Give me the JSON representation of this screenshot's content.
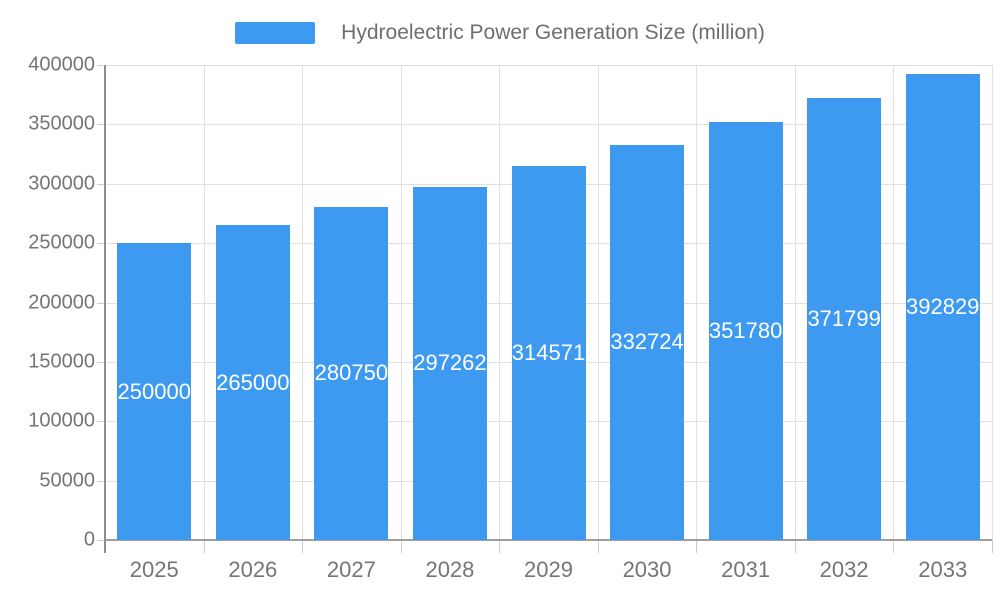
{
  "legend": {
    "label": "Hydroelectric Power Generation Size (million)"
  },
  "colors": {
    "bar": "#3d9af0",
    "grid": "#e0e0e0",
    "tick": "#cccccc",
    "y_axis_line": "#8d8d8d",
    "x_axis_line": "#9e9e9e",
    "axis_text": "#757575",
    "legend_text": "#6e6e6e",
    "bar_label_text": "#ffffff",
    "background": "#ffffff"
  },
  "chart_data": {
    "type": "bar",
    "title": "Hydroelectric Power Generation Size (million)",
    "categories": [
      "2025",
      "2026",
      "2027",
      "2028",
      "2029",
      "2030",
      "2031",
      "2032",
      "2033"
    ],
    "values": [
      250000,
      265000,
      280750,
      297262,
      314571,
      332724,
      351780,
      371799,
      392829
    ],
    "bar_value_labels": [
      "250000",
      "265000",
      "280750",
      "297262",
      "314571",
      "332724",
      "351780",
      "371799",
      "392829"
    ],
    "xlabel": "",
    "ylabel": "",
    "ylim": [
      0,
      400000
    ],
    "y_ticks": [
      0,
      50000,
      100000,
      150000,
      200000,
      250000,
      300000,
      350000,
      400000
    ],
    "y_tick_labels": [
      "0",
      "50000",
      "100000",
      "150000",
      "200000",
      "250000",
      "300000",
      "350000",
      "400000"
    ],
    "grid": true,
    "vertical_gridlines": true,
    "legend_position": "top-center",
    "bar_labels_visible": true
  }
}
